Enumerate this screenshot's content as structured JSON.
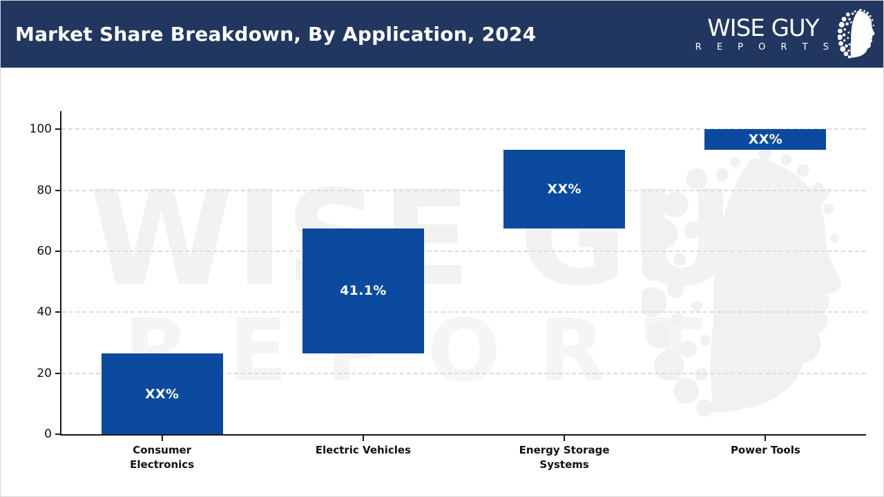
{
  "header": {
    "title": "Market Share Breakdown, By Application, 2024",
    "logo": {
      "line1": "WISE GUY",
      "line2": "R E P O R T S"
    }
  },
  "watermark": {
    "line1": "WISE GUY",
    "line2": "R E P O R T S"
  },
  "chart_data": {
    "type": "bar",
    "variant": "waterfall",
    "title": "Market Share Breakdown, By Application, 2024",
    "categories": [
      "Consumer Electronics",
      "Electric Vehicles",
      "Energy Storage Systems",
      "Power Tools"
    ],
    "category_tick_lines": [
      [
        "Consumer",
        "Electronics"
      ],
      [
        "Electric Vehicles"
      ],
      [
        "Energy Storage",
        "Systems"
      ],
      [
        "Power Tools"
      ]
    ],
    "segments": [
      {
        "category": "Consumer Electronics",
        "label": "XX%",
        "start": 0,
        "end": 26.5
      },
      {
        "category": "Electric Vehicles",
        "label": "41.1%",
        "start": 26.5,
        "end": 67.6
      },
      {
        "category": "Energy Storage Systems",
        "label": "XX%",
        "start": 67.6,
        "end": 93.4
      },
      {
        "category": "Power Tools",
        "label": "XX%",
        "start": 93.4,
        "end": 100
      }
    ],
    "yticks": [
      0,
      20,
      40,
      60,
      80,
      100
    ],
    "ylim": [
      0,
      106
    ],
    "grid": {
      "horizontal": true,
      "style": "dashed"
    },
    "legend": null
  },
  "colors": {
    "header_bg": "#22375f",
    "bar": "#0b4a9f",
    "bar_label": "#ffffff",
    "axis": "#151515",
    "gridline": "#dadada",
    "watermark_text": "#f2f2f2",
    "background": "#ffffff",
    "frame_border": "#d6d6d6"
  },
  "icons": {
    "logo_face": "face-profile-dots-icon"
  }
}
